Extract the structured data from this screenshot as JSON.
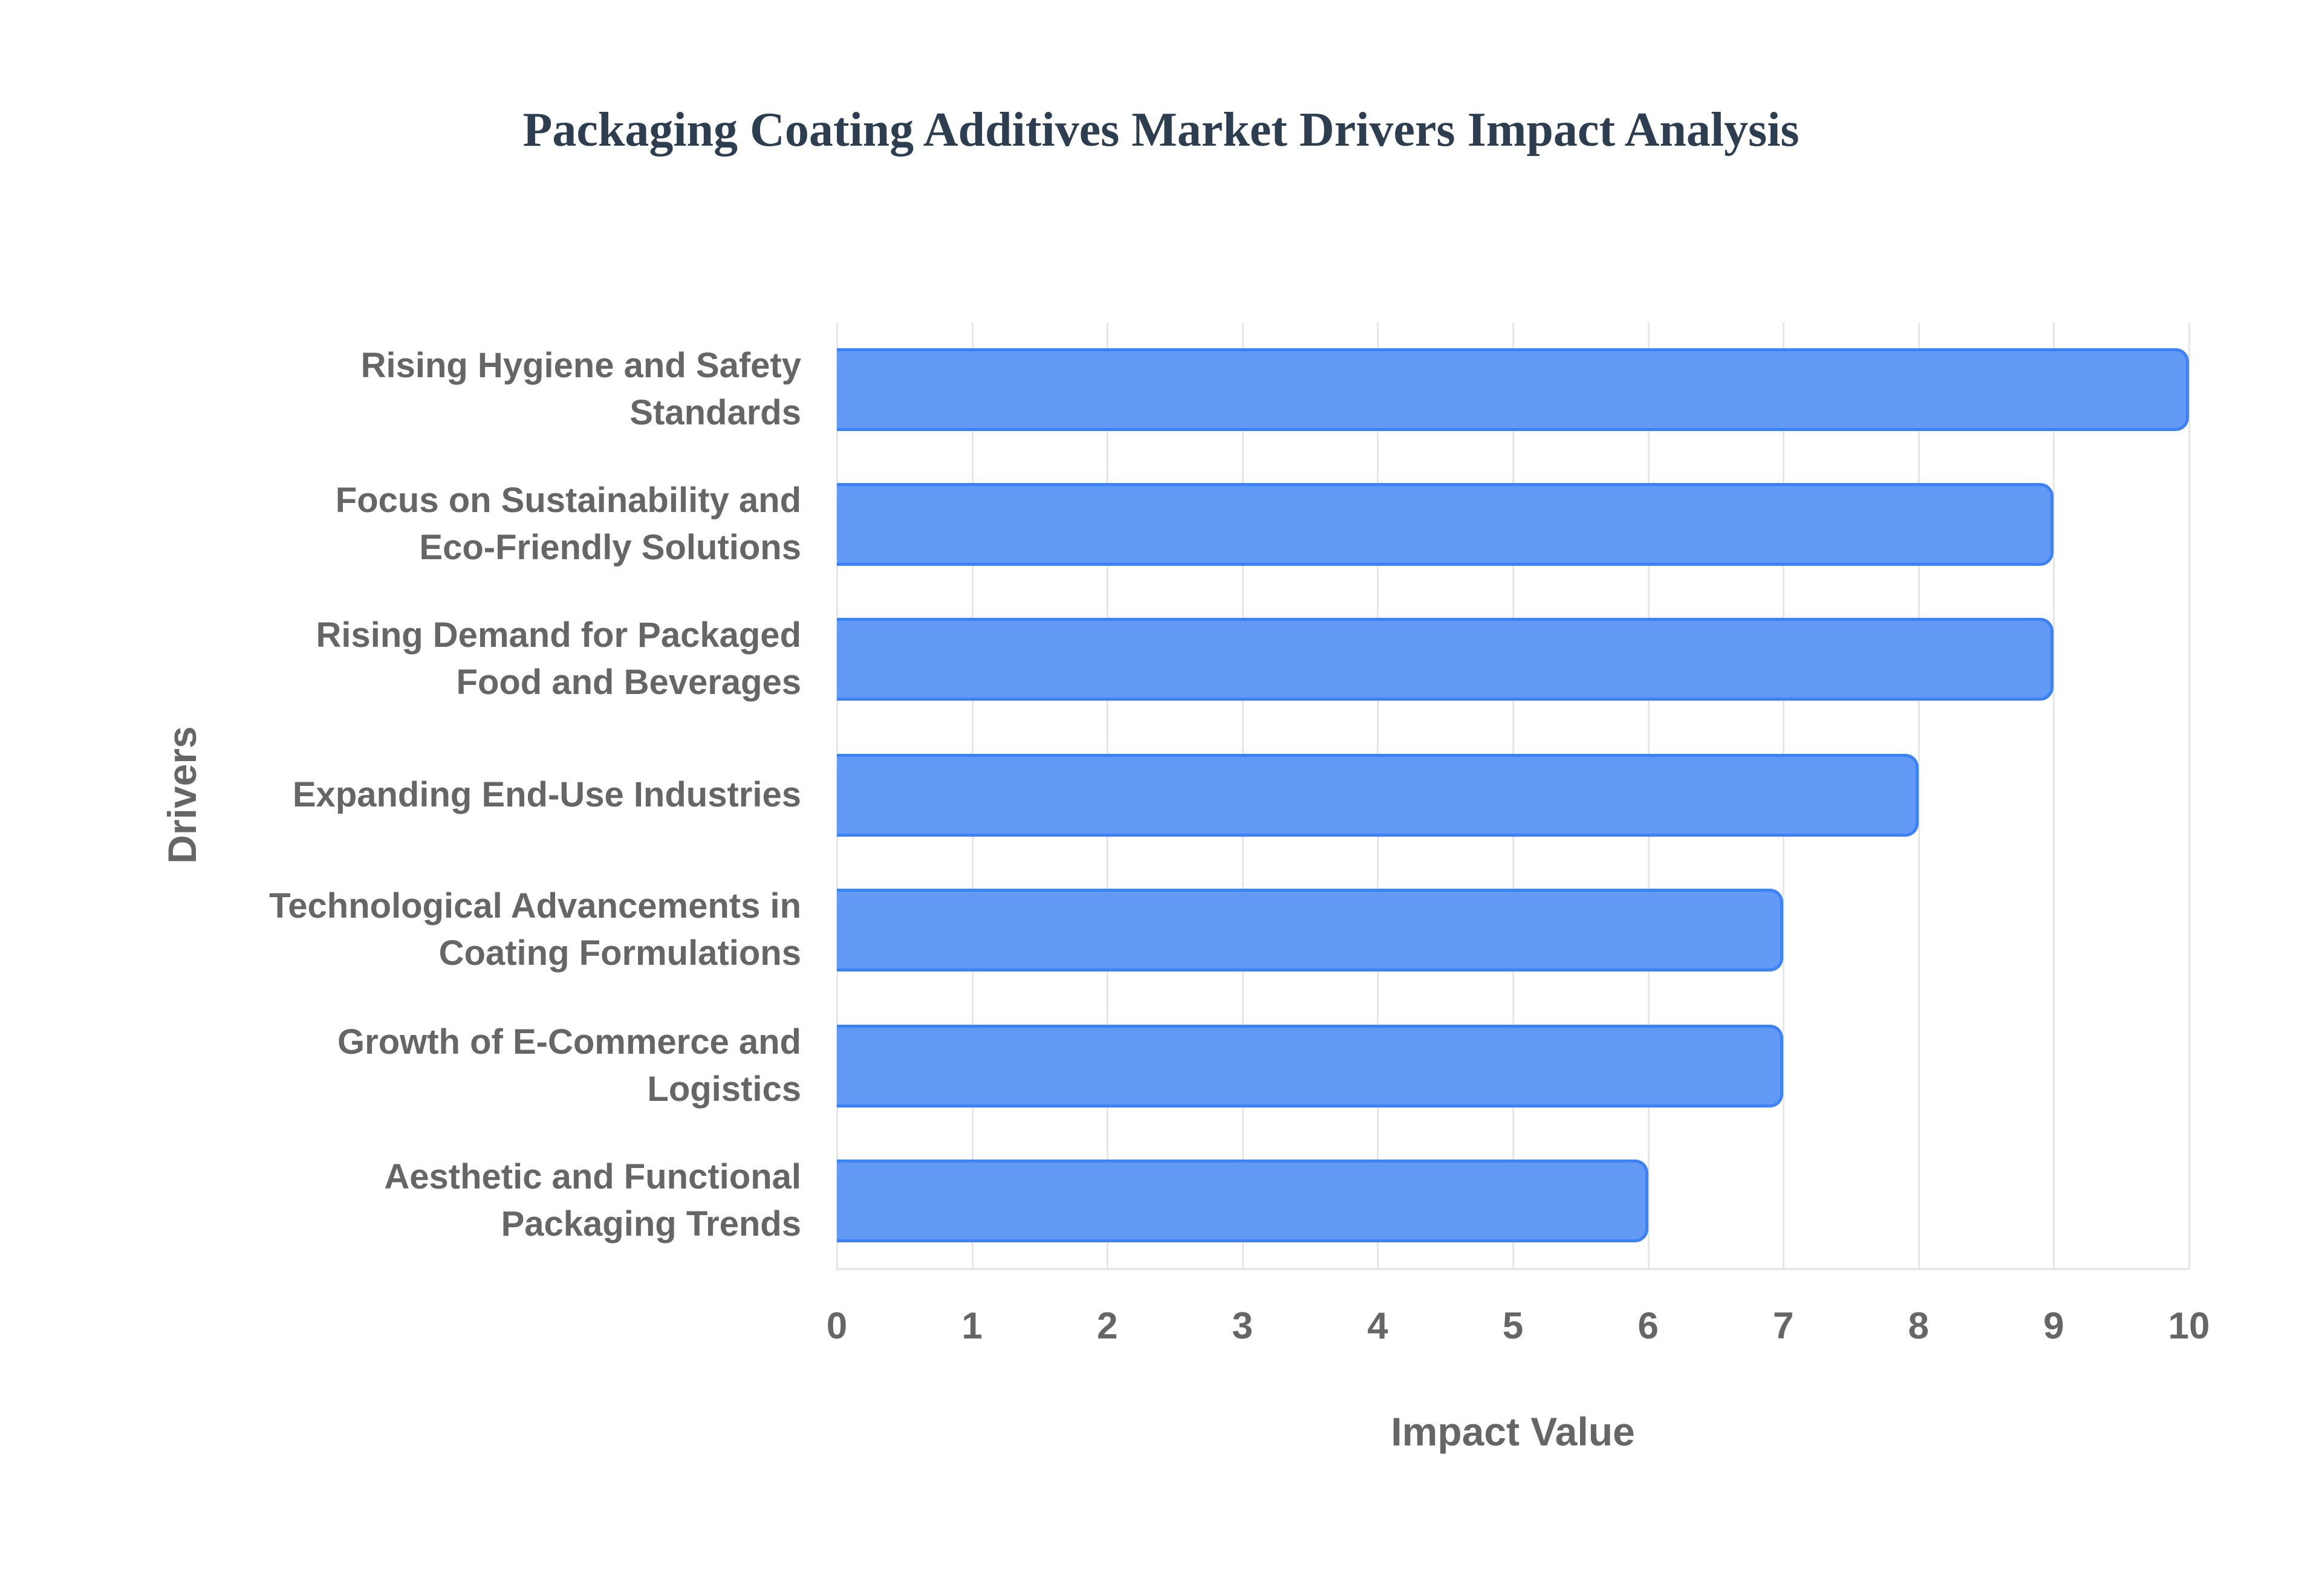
{
  "chart_data": {
    "type": "bar",
    "orientation": "horizontal",
    "title": "Packaging Coating Additives Market Drivers Impact Analysis",
    "xlabel": "Impact Value",
    "ylabel": "Drivers",
    "xlim": [
      0,
      10
    ],
    "xticks": [
      "0",
      "1",
      "2",
      "3",
      "4",
      "5",
      "6",
      "7",
      "8",
      "9",
      "10"
    ],
    "grid": true,
    "legend": "none",
    "bar_color": "#6199f5",
    "bar_border_color": "#3b82f6",
    "categories": [
      "Rising Hygiene and Safety Standards",
      "Focus on Sustainability and Eco-Friendly Solutions",
      "Rising Demand for Packaged Food and Beverages",
      "Expanding End-Use Industries",
      "Technological Advancements in Coating Formulations",
      "Growth of E-Commerce and Logistics",
      "Aesthetic and Functional Packaging Trends"
    ],
    "category_lines": [
      [
        "Rising Hygiene and Safety",
        "Standards"
      ],
      [
        "Focus on Sustainability and",
        "Eco-Friendly Solutions"
      ],
      [
        "Rising Demand for Packaged",
        "Food and Beverages"
      ],
      [
        "Expanding End-Use Industries"
      ],
      [
        "Technological Advancements in",
        "Coating Formulations"
      ],
      [
        "Growth of E-Commerce and",
        "Logistics"
      ],
      [
        "Aesthetic and Functional",
        "Packaging Trends"
      ]
    ],
    "values": [
      10,
      9,
      9,
      8,
      7,
      7,
      6
    ]
  }
}
